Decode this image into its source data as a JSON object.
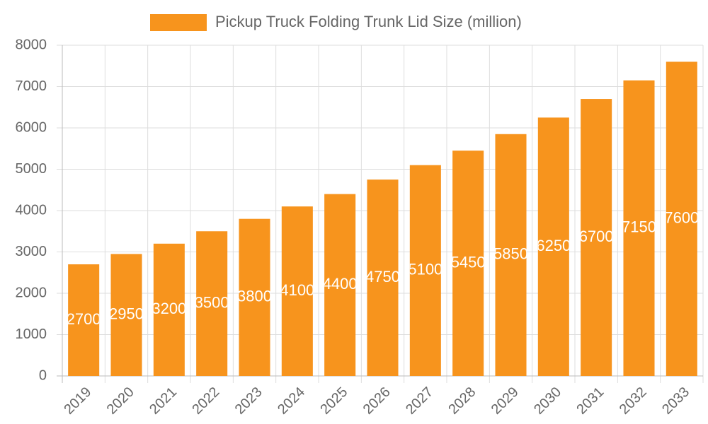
{
  "chart_data": {
    "type": "bar",
    "categories": [
      "2019",
      "2020",
      "2021",
      "2022",
      "2023",
      "2024",
      "2025",
      "2026",
      "2027",
      "2028",
      "2029",
      "2030",
      "2031",
      "2032",
      "2033"
    ],
    "series": [
      {
        "name": "Pickup Truck Folding Trunk Lid Size (million)",
        "color": "#f7941d",
        "values": [
          2700,
          2950,
          3200,
          3500,
          3800,
          4100,
          4400,
          4750,
          5100,
          5450,
          5850,
          6250,
          6700,
          7150,
          7600
        ]
      }
    ],
    "ylim": [
      0,
      8000
    ],
    "yticks": [
      0,
      1000,
      2000,
      3000,
      4000,
      5000,
      6000,
      7000,
      8000
    ],
    "grid": true,
    "legend": "top"
  }
}
